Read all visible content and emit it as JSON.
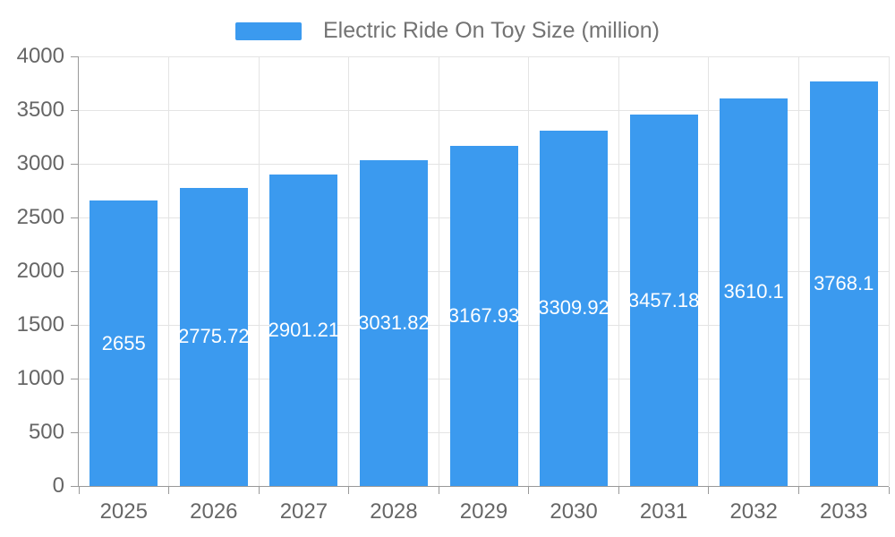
{
  "legend": {
    "swatch_color": "#3B9AEF",
    "label": "Electric Ride On Toy Size (million)"
  },
  "chart_data": {
    "type": "bar",
    "title": "Electric Ride On Toy Size (million)",
    "categories": [
      "2025",
      "2026",
      "2027",
      "2028",
      "2029",
      "2030",
      "2031",
      "2032",
      "2033"
    ],
    "series": [
      {
        "name": "Electric Ride On Toy Size (million)",
        "values": [
          2655,
          2775.72,
          2901.21,
          3031.82,
          3167.93,
          3309.92,
          3457.18,
          3610.1,
          3768.1
        ],
        "value_labels": [
          "2655",
          "2775.72",
          "2901.21",
          "3031.82",
          "3167.93",
          "3309.92",
          "3457.18",
          "3610.1",
          "3768.1"
        ]
      }
    ],
    "xlabel": "",
    "ylabel": "",
    "ylim": [
      0,
      4000
    ],
    "yticks": [
      0,
      500,
      1000,
      1500,
      2000,
      2500,
      3000,
      3500,
      4000
    ],
    "grid": true,
    "legend_position": "top-center",
    "bar_label_position": "inside-center",
    "colors": {
      "bar": "#3B9AEF",
      "bar_label": "#FFFFFF",
      "axis_text": "#666666",
      "legend_text": "#737373",
      "axis_line": "#999999",
      "gridline": "#E4E4E4",
      "background": "#FFFFFF"
    }
  }
}
